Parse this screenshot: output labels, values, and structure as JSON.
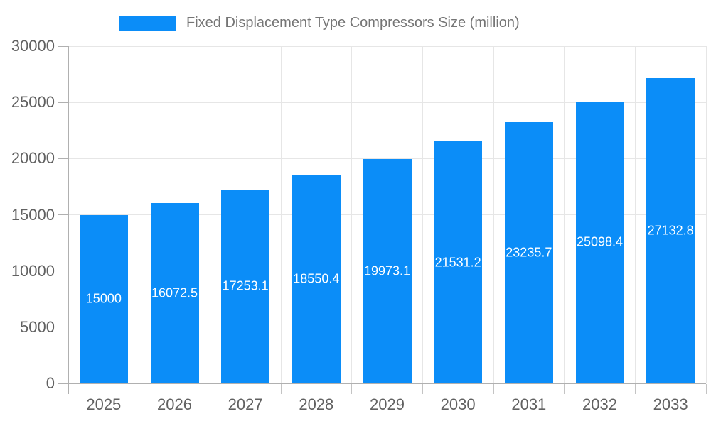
{
  "chart_data": {
    "type": "bar",
    "title": "Fixed Displacement Type Compressors Size (million)",
    "legend": {
      "position": "top",
      "items": [
        {
          "label": "Fixed Displacement Type Compressors Size (million)",
          "color": "#0b8df8"
        }
      ]
    },
    "categories": [
      "2025",
      "2026",
      "2027",
      "2028",
      "2029",
      "2030",
      "2031",
      "2032",
      "2033"
    ],
    "series": [
      {
        "name": "Fixed Displacement Type Compressors Size (million)",
        "values": [
          15000,
          16072.5,
          17253.1,
          18550.4,
          19973.1,
          21531.2,
          23235.7,
          25098.4,
          27132.8
        ],
        "labels": [
          "15000",
          "16072.5",
          "17253.1",
          "18550.4",
          "19973.1",
          "21531.2",
          "23235.7",
          "25098.4",
          "27132.8"
        ]
      }
    ],
    "xlabel": "",
    "ylabel": "",
    "ylim": [
      0,
      30000
    ],
    "yticks": [
      0,
      5000,
      10000,
      15000,
      20000,
      25000,
      30000
    ],
    "grid": true,
    "legend_text_color": "#757575",
    "axis_text_color": "#616161",
    "gridline_color": "#e6e6e6",
    "axis_line_color": "#b0b0b0",
    "bar_color": "#0b8df8",
    "value_label_color": "#ffffff",
    "background_color": "#ffffff"
  }
}
